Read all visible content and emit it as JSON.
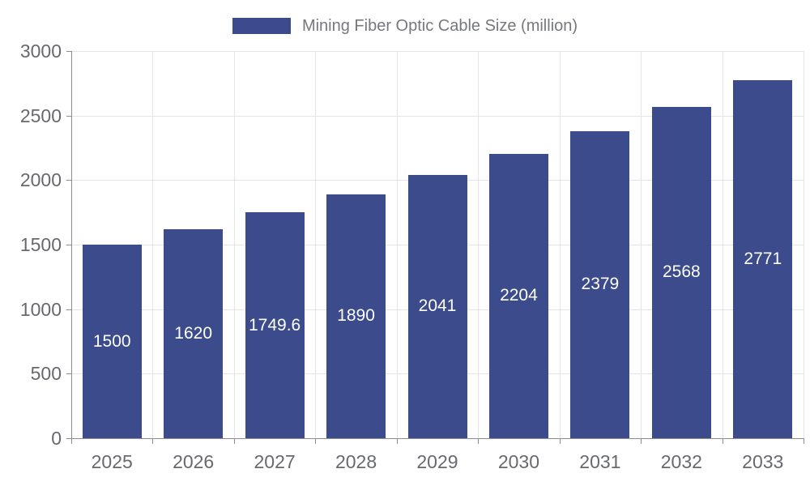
{
  "legend": {
    "label": "Mining Fiber Optic Cable Size (million)"
  },
  "chart_data": {
    "type": "bar",
    "title": "Mining Fiber Optic Cable Size (million)",
    "categories": [
      "2025",
      "2026",
      "2027",
      "2028",
      "2029",
      "2030",
      "2031",
      "2032",
      "2033"
    ],
    "values": [
      1500,
      1620,
      1749.6,
      1890,
      2041,
      2204,
      2379,
      2568,
      2771
    ],
    "xlabel": "",
    "ylabel": "",
    "ylim": [
      0,
      3000
    ],
    "yticks": [
      0,
      500,
      1000,
      1500,
      2000,
      2500,
      3000
    ],
    "grid": true,
    "legend_position": "top-center",
    "bar_label_position": "inside-center",
    "colors": {
      "bar": "#3B4B8C",
      "bar_label": "#FFFFFF",
      "grid": "#E4E4E9",
      "axis": "#8A8D92",
      "tick_label": "#67696E",
      "legend_text": "#75787D",
      "background": "#FFFFFF"
    }
  }
}
